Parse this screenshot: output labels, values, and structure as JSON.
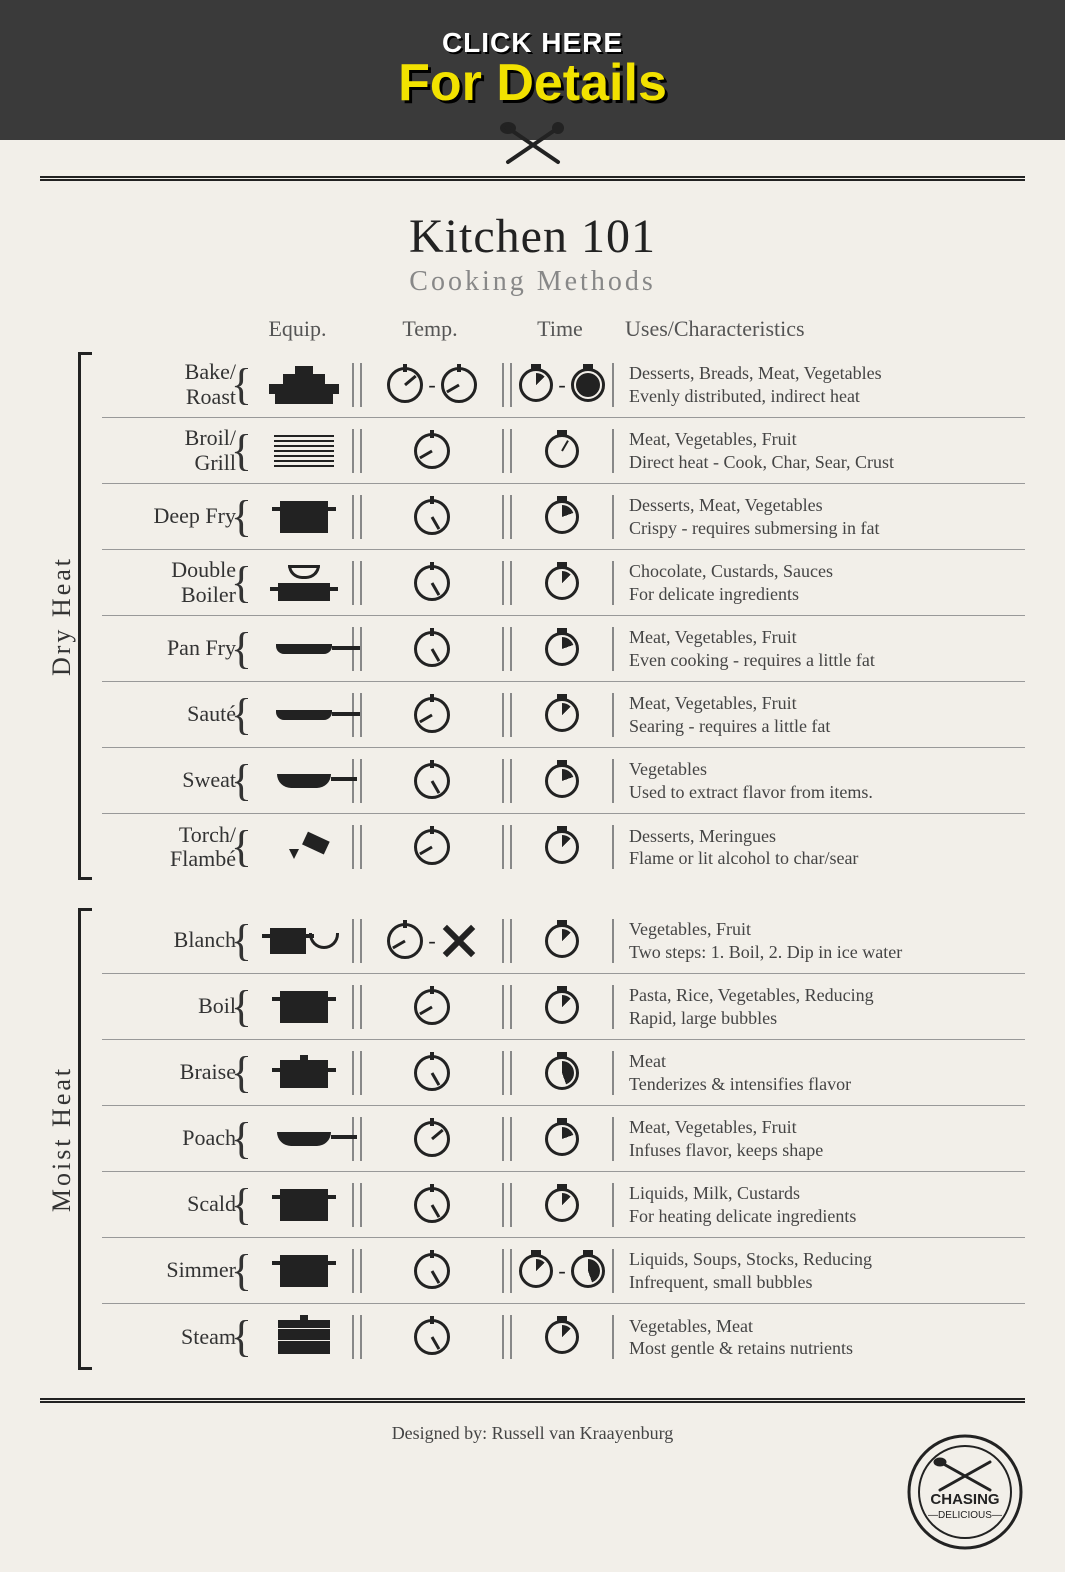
{
  "banner": {
    "line1": "CLICK HERE",
    "line2": "For Details"
  },
  "title": "Kitchen 101",
  "subtitle": "Cooking Methods",
  "columns": {
    "c1": "Equip.",
    "c2": "Temp.",
    "c3": "Time",
    "c4": "Uses/Characteristics"
  },
  "sections": {
    "dry": {
      "label": "Dry Heat",
      "rows": [
        {
          "name": "Bake/\nRoast",
          "equip": "oven",
          "temp": "lo-hi",
          "time": "5-full",
          "uses1": "Desserts, Breads, Meat, Vegetables",
          "uses2": "Evenly distributed, indirect heat"
        },
        {
          "name": "Broil/\nGrill",
          "equip": "grill",
          "temp": "hi",
          "time": "0",
          "uses1": "Meat, Vegetables, Fruit",
          "uses2": "Direct heat - Cook, Char, Sear, Crust"
        },
        {
          "name": "Deep Fry",
          "equip": "pot",
          "temp": "md",
          "time": "10",
          "uses1": "Desserts, Meat, Vegetables",
          "uses2": "Crispy - requires submersing in fat"
        },
        {
          "name": "Double\nBoiler",
          "equip": "dbl",
          "temp": "md",
          "time": "5",
          "uses1": "Chocolate, Custards, Sauces",
          "uses2": "For delicate ingredients"
        },
        {
          "name": "Pan Fry",
          "equip": "pan",
          "temp": "md",
          "time": "10",
          "uses1": "Meat, Vegetables, Fruit",
          "uses2": "Even cooking - requires a little fat"
        },
        {
          "name": "Sauté",
          "equip": "pan",
          "temp": "hi",
          "time": "5",
          "uses1": "Meat, Vegetables, Fruit",
          "uses2": "Searing - requires a little fat"
        },
        {
          "name": "Sweat",
          "equip": "skillet",
          "temp": "md",
          "time": "10",
          "uses1": "Vegetables",
          "uses2": "Used to extract flavor from items."
        },
        {
          "name": "Torch/\nFlambé",
          "equip": "torch",
          "temp": "hi",
          "time": "5",
          "uses1": "Desserts, Meringues",
          "uses2": "Flame or lit alcohol to char/sear"
        }
      ]
    },
    "moist": {
      "label": "Moist Heat",
      "rows": [
        {
          "name": "Blanch",
          "equip": "pot-bowl",
          "temp": "hi-x",
          "time": "5",
          "uses1": "Vegetables, Fruit",
          "uses2": "Two steps: 1. Boil, 2. Dip in ice water"
        },
        {
          "name": "Boil",
          "equip": "pot",
          "temp": "hi",
          "time": "5",
          "uses1": "Pasta, Rice, Vegetables, Reducing",
          "uses2": "Rapid, large bubbles"
        },
        {
          "name": "Braise",
          "equip": "potlid",
          "temp": "md",
          "time": "20",
          "uses1": "Meat",
          "uses2": "Tenderizes & intensifies flavor"
        },
        {
          "name": "Poach",
          "equip": "skillet",
          "temp": "lo",
          "time": "10",
          "uses1": "Meat, Vegetables, Fruit",
          "uses2": "Infuses flavor, keeps shape"
        },
        {
          "name": "Scald",
          "equip": "pot",
          "temp": "md",
          "time": "5",
          "uses1": "Liquids, Milk, Custards",
          "uses2": "For heating delicate ingredients"
        },
        {
          "name": "Simmer",
          "equip": "pot",
          "temp": "md",
          "time": "5-20",
          "uses1": "Liquids, Soups, Stocks, Reducing",
          "uses2": "Infrequent, small bubbles"
        },
        {
          "name": "Steam",
          "equip": "steamer",
          "temp": "md",
          "time": "5",
          "uses1": "Vegetables, Meat",
          "uses2": "Most gentle & retains nutrients"
        }
      ]
    }
  },
  "footer": "Designed by: Russell van Kraayenburg",
  "badge": {
    "line1": "CHASING",
    "line2": "DELICIOUS"
  },
  "colors": {
    "banner_bg": "#3a3a3a",
    "banner_text1": "#ffffff",
    "banner_text2": "#f2e200",
    "page_bg": "#f2efe9",
    "ink": "#222222",
    "subtext": "#888888",
    "rule": "#999999"
  },
  "typography": {
    "title_size": 48,
    "subtitle_size": 28,
    "method_size": 22,
    "uses_size": 18
  }
}
